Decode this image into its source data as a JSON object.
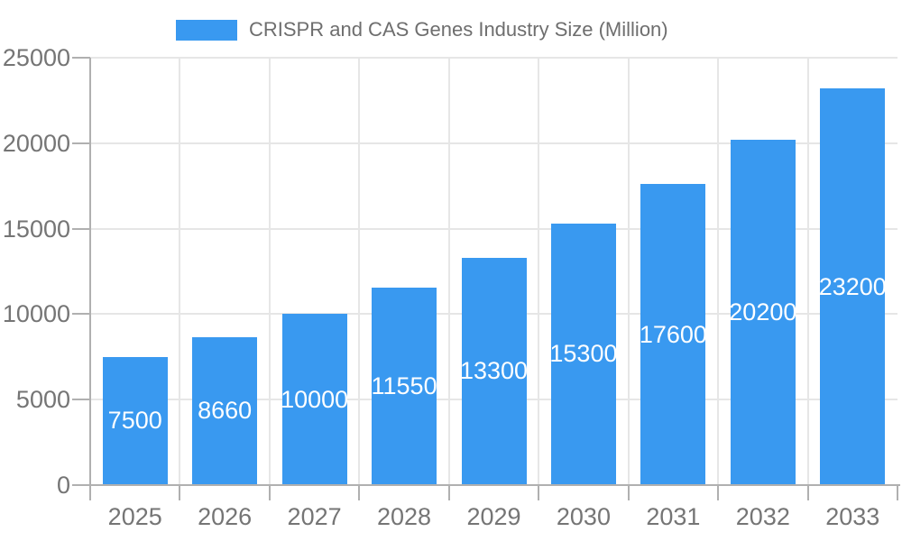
{
  "chart_data": {
    "type": "bar",
    "title": "CRISPR and CAS Genes Industry Size (Million)",
    "categories": [
      "2025",
      "2026",
      "2027",
      "2028",
      "2029",
      "2030",
      "2031",
      "2032",
      "2033"
    ],
    "values": [
      7500,
      8660,
      10000,
      11550,
      13300,
      15300,
      17600,
      20200,
      23200
    ],
    "series": [
      {
        "name": "CRISPR and CAS Genes Industry Size (Million)",
        "values": [
          7500,
          8660,
          10000,
          11550,
          13300,
          15300,
          17600,
          20200,
          23200
        ]
      }
    ],
    "xlabel": "",
    "ylabel": "",
    "ylim": [
      0,
      25000
    ],
    "yticks": [
      0,
      5000,
      10000,
      15000,
      20000,
      25000
    ],
    "ytick_labels": [
      "0",
      "5000",
      "10000",
      "15000",
      "20000",
      "25000"
    ],
    "grid": true,
    "legend_position": "top",
    "value_label_position": "inside-center",
    "colors": {
      "bar": "#3999f0",
      "value_label": "#ffffff",
      "axis_label": "#757575",
      "title": "#6e6e6e",
      "axis_line": "#b0b0b0",
      "gridline": "#e6e6e6",
      "background": "#ffffff"
    }
  }
}
